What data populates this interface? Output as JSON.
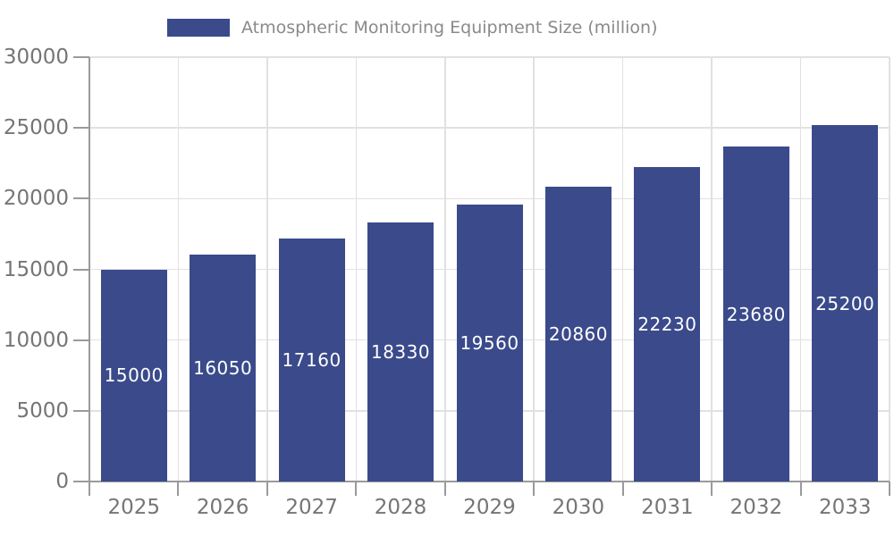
{
  "chart_data": {
    "type": "bar",
    "title": "Atmospheric Monitoring Equipment Size (million)",
    "legend": {
      "position": "top",
      "entries": [
        "Atmospheric Monitoring Equipment Size (million)"
      ]
    },
    "categories": [
      "2025",
      "2026",
      "2027",
      "2028",
      "2029",
      "2030",
      "2031",
      "2032",
      "2033"
    ],
    "values": [
      15000,
      16050,
      17160,
      18330,
      19560,
      20860,
      22230,
      23680,
      25200
    ],
    "value_labels": [
      "15000",
      "16050",
      "17160",
      "18330",
      "19560",
      "20860",
      "22230",
      "23680",
      "25200"
    ],
    "xlabel": "",
    "ylabel": "",
    "ylim": [
      0,
      30000
    ],
    "ytick_interval": 5000,
    "ytick_labels": [
      "0",
      "5000",
      "10000",
      "15000",
      "20000",
      "25000",
      "30000"
    ],
    "grid": true
  },
  "colors": {
    "bar_fill": "#3a4a8b",
    "value_label_text": "#ffffff",
    "legend_text": "#8a8a8a",
    "axis_tick_text": "#757575",
    "grid_line": "#e1e1e1",
    "axis_line": "#9a9a9a"
  }
}
